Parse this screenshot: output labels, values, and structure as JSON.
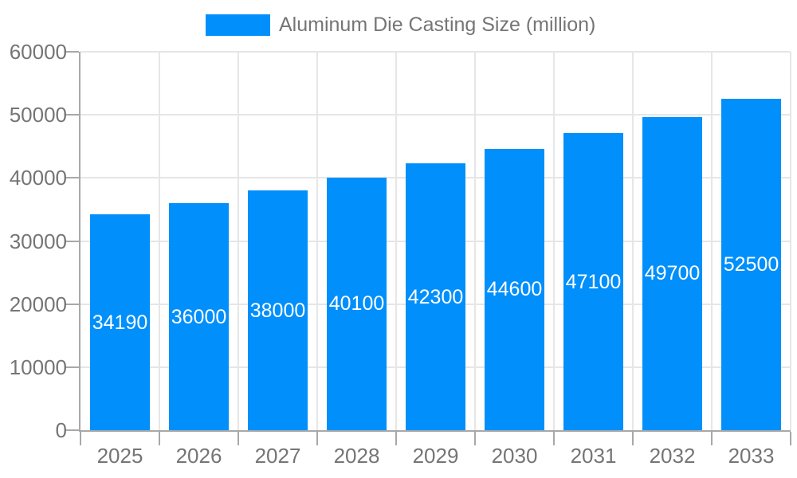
{
  "chart_data": {
    "type": "bar",
    "series_name": "Aluminum Die Casting Size (million)",
    "categories": [
      "2025",
      "2026",
      "2027",
      "2028",
      "2029",
      "2030",
      "2031",
      "2032",
      "2033"
    ],
    "values": [
      34190,
      36000,
      38000,
      40100,
      42300,
      44600,
      47100,
      49700,
      52500
    ],
    "value_labels": [
      "34190",
      "36000",
      "38000",
      "40100",
      "42300",
      "44600",
      "47100",
      "49700",
      "52500"
    ],
    "ylim": [
      0,
      60000
    ],
    "ytick_step": 10000,
    "ytick_labels": [
      "0",
      "10000",
      "20000",
      "30000",
      "40000",
      "50000",
      "60000"
    ],
    "xlabel": "",
    "ylabel": "",
    "title": "",
    "grid": true,
    "legend_position": "top",
    "colors": {
      "bar": "#008ffb",
      "value_label": "#ffffff",
      "axis_text": "#757575",
      "legend_text": "#757575",
      "axis_line": "#a8a8a8",
      "grid_line": "#e6e6e6",
      "background": "#ffffff"
    }
  }
}
